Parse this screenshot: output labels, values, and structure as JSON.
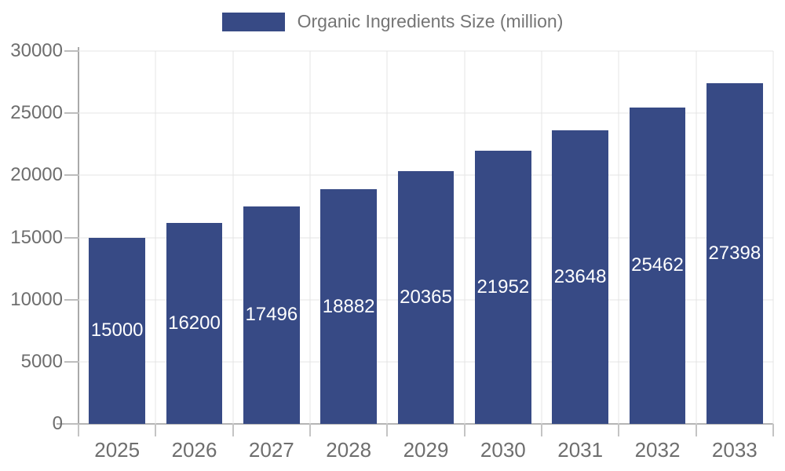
{
  "legend": {
    "label": "Organic Ingredients Size (million)"
  },
  "chart_data": {
    "type": "bar",
    "title": "Organic Ingredients Size (million)",
    "series_name": "Organic Ingredients Size (million)",
    "categories": [
      "2025",
      "2026",
      "2027",
      "2028",
      "2029",
      "2030",
      "2031",
      "2032",
      "2033"
    ],
    "values": [
      15000,
      16200,
      17496,
      18882,
      20365,
      21952,
      23648,
      25462,
      27398
    ],
    "xlabel": "",
    "ylabel": "",
    "ylim": [
      0,
      30000
    ],
    "yticks": [
      0,
      5000,
      10000,
      15000,
      20000,
      25000,
      30000
    ],
    "grid": true,
    "legend_position": "top-center",
    "bar_color": "#374a85",
    "value_label_color": "#ffffff",
    "axis_text_color": "#6e6e6e",
    "legend_text_color": "#757575",
    "gridline_color": "#e4e4e4"
  }
}
